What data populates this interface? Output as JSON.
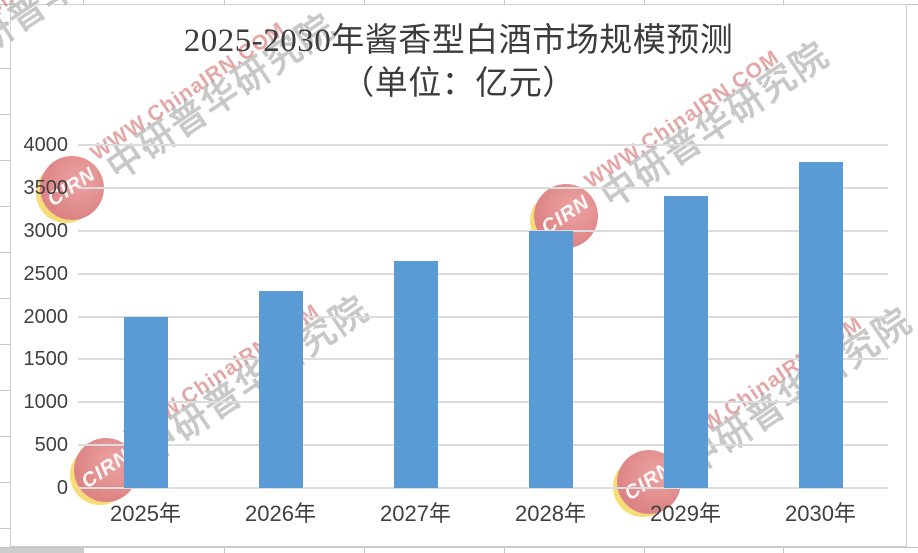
{
  "chart_data": {
    "type": "bar",
    "title": "2025-2030年酱香型白酒市场规模预测（单位：亿元）",
    "title_lines": [
      "2025-2030年酱香型白酒市场规模预测",
      "（单位：亿元）"
    ],
    "unit": "亿元",
    "categories": [
      "2025年",
      "2026年",
      "2027年",
      "2028年",
      "2029年",
      "2030年"
    ],
    "values": [
      2000,
      2300,
      2650,
      3000,
      3400,
      3800
    ],
    "ylim": [
      0,
      4000
    ],
    "ytick_step": 500,
    "yticks": [
      0,
      500,
      1000,
      1500,
      2000,
      2500,
      3000,
      3500,
      4000
    ],
    "grid": true,
    "legend": "none",
    "bar_color": "#5B9BD5",
    "gridline_color": "#DCDCDC",
    "label_color": "#404040",
    "title_color": "#3C3C3C"
  },
  "watermark": {
    "url_text": "WWW.ChinaIRN.COM",
    "cn_text": "中研普华研究院",
    "logo_text": "CIRN",
    "url_color": "#CD5F5F",
    "cn_color": "#787878",
    "logo_red": "#C94444",
    "logo_yellow": "#F6D24E"
  }
}
